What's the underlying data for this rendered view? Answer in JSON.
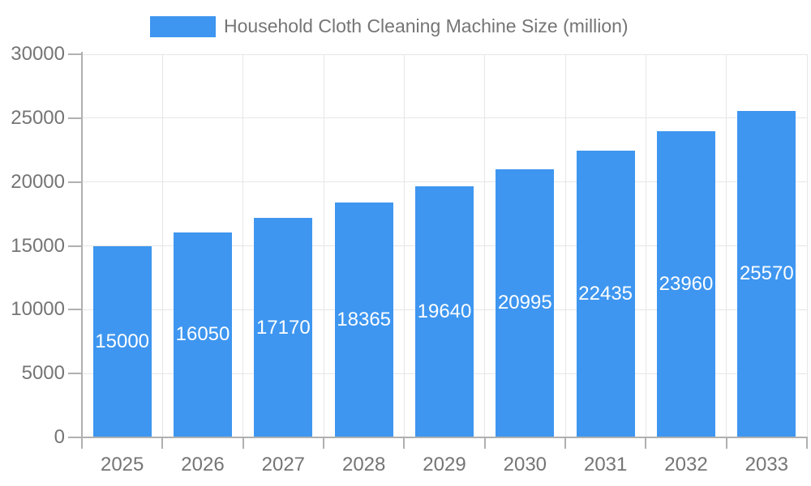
{
  "chart_data": {
    "type": "bar",
    "title": "Household Cloth Cleaning Machine Size (million)",
    "categories": [
      "2025",
      "2026",
      "2027",
      "2028",
      "2029",
      "2030",
      "2031",
      "2032",
      "2033"
    ],
    "values": [
      15000,
      16050,
      17170,
      18365,
      19640,
      20995,
      22435,
      23960,
      25570
    ],
    "xlabel": "",
    "ylabel": "",
    "ylim": [
      0,
      30000
    ],
    "yticks": [
      0,
      5000,
      10000,
      15000,
      20000,
      25000,
      30000
    ],
    "legend_position": "top",
    "grid": true,
    "value_labels": "inside-center",
    "colors": {
      "bar": "#3E96F0",
      "value_label": "#FFFFFF",
      "axis_text": "#757575",
      "gridline": "#E6E6E6",
      "axis_line": "#B0B0B0",
      "background": "#FFFFFF"
    }
  }
}
